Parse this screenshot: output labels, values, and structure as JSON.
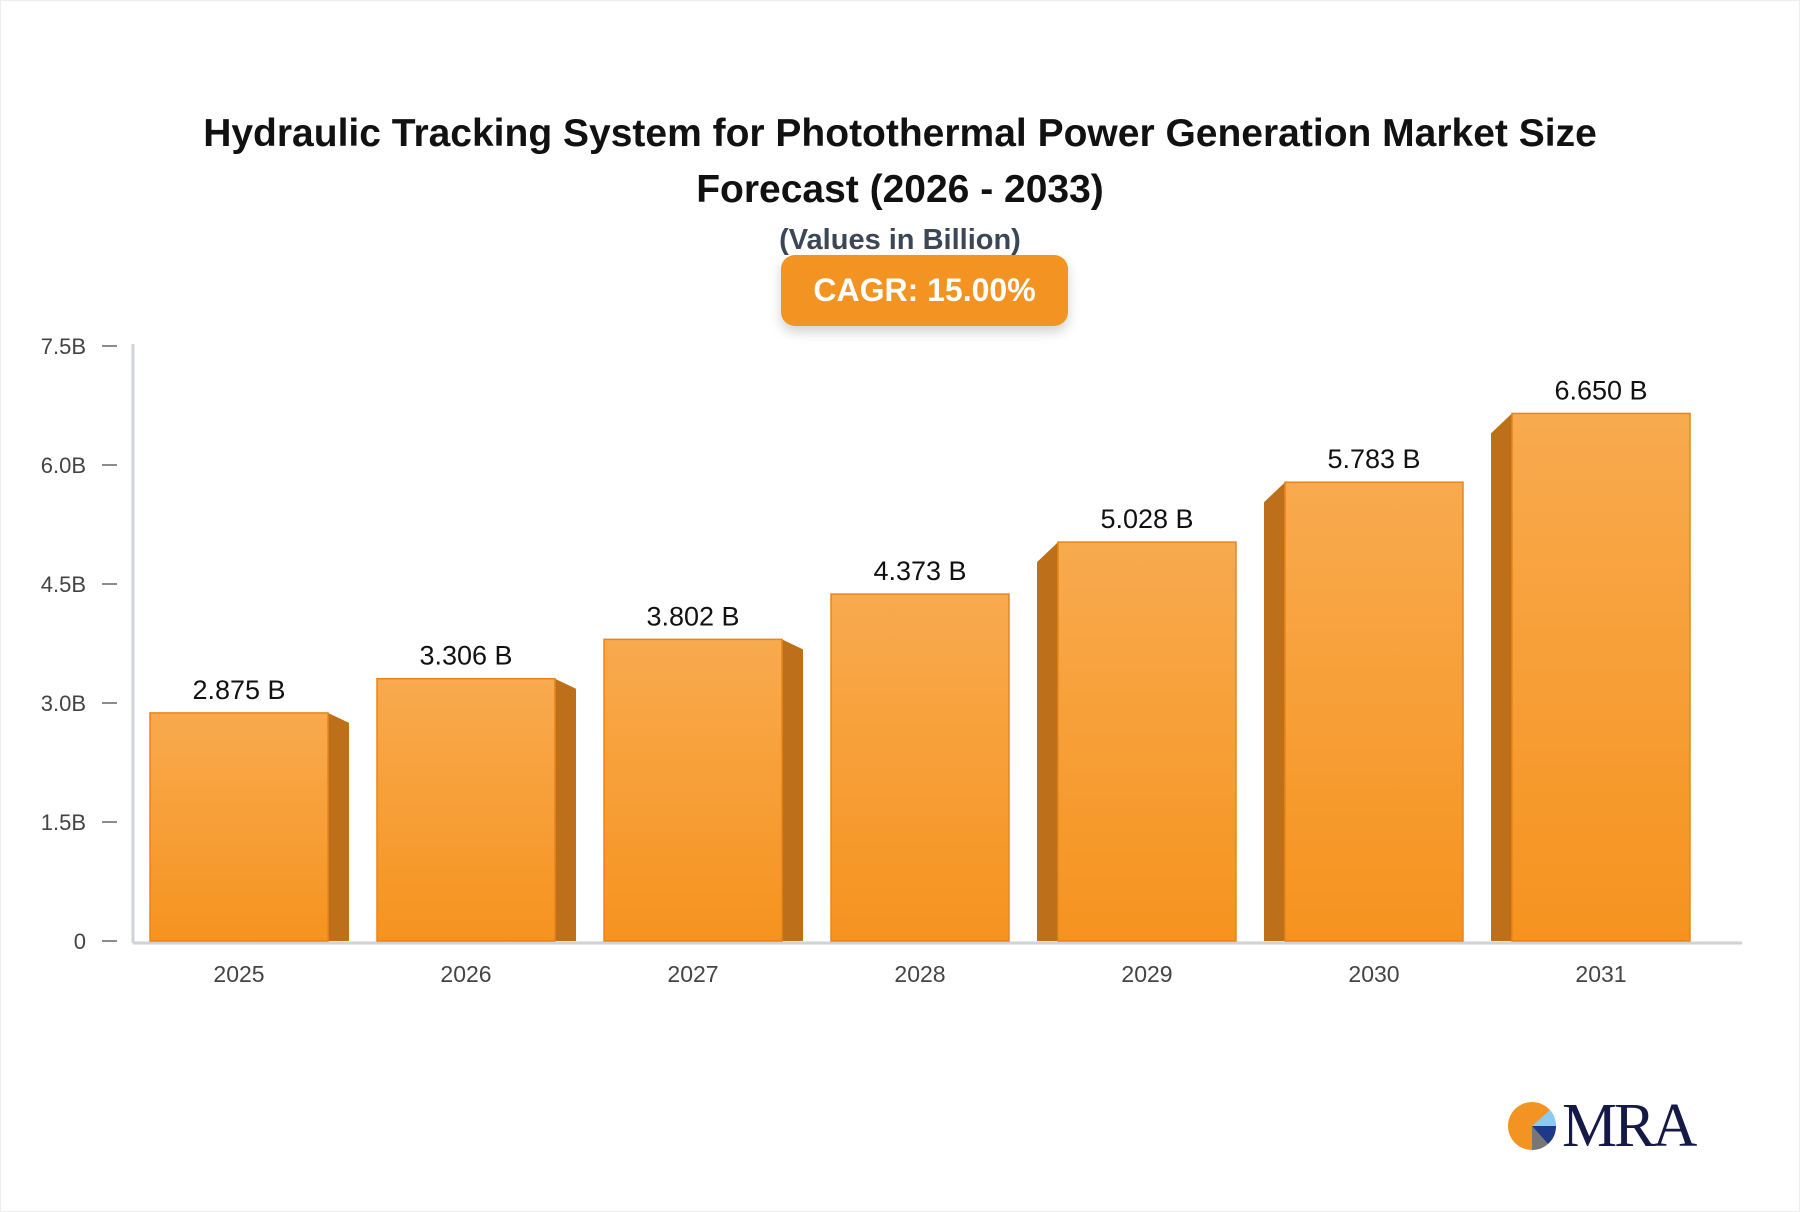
{
  "chart_data": {
    "type": "bar",
    "title_line1": "Hydraulic Tracking System for Photothermal Power Generation Market Size",
    "title_line2": "Forecast (2026 - 2033)",
    "subtitle": "(Values in Billion)",
    "badge": "CAGR: 15.00%",
    "categories": [
      "2025",
      "2026",
      "2027",
      "2028",
      "2029",
      "2030",
      "2031"
    ],
    "values": [
      2.875,
      3.306,
      3.802,
      4.373,
      5.028,
      5.783,
      6.65
    ],
    "value_labels": [
      "2.875 B",
      "3.306 B",
      "3.802 B",
      "4.373 B",
      "5.028 B",
      "5.783 B",
      "6.650 B"
    ],
    "yticks": [
      0,
      1.5,
      3.0,
      4.5,
      6.0,
      7.5
    ],
    "ytick_labels": [
      "0",
      "1.5B",
      "3.0B",
      "4.5B",
      "6.0B",
      "7.5B"
    ],
    "ylim": [
      0,
      7.5
    ],
    "xlabel": "",
    "ylabel": "",
    "grid": false,
    "colors": {
      "bar_top": "#f8aa4e",
      "bar_bottom": "#f6931f",
      "bar_side": "#bd6f1a",
      "axis": "#d0d2da"
    }
  },
  "logo": {
    "text": "MRA"
  }
}
